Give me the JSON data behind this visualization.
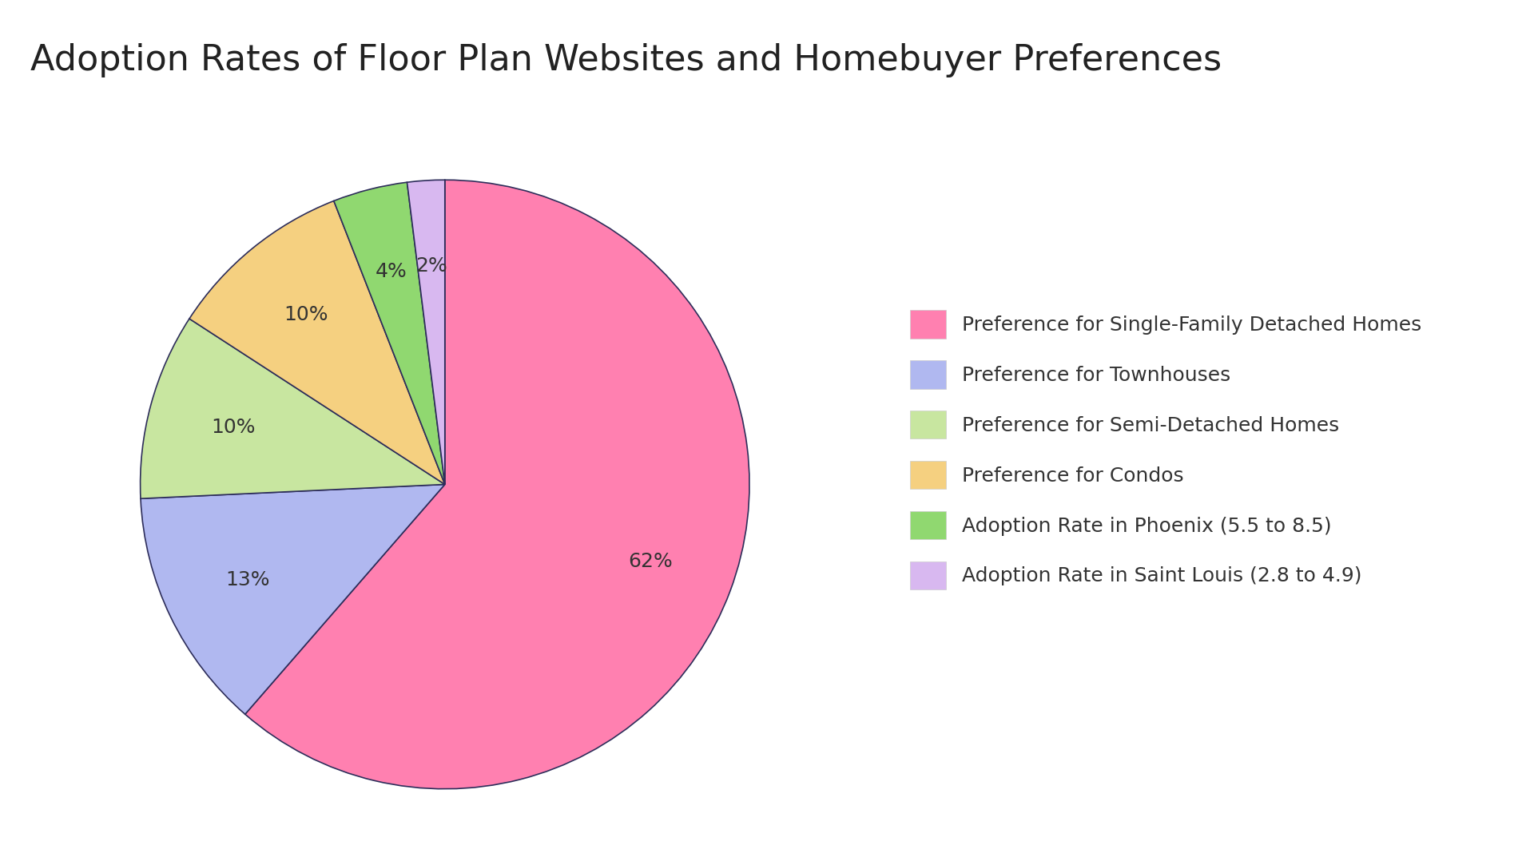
{
  "title": "Adoption Rates of Floor Plan Websites and Homebuyer Preferences",
  "slices": [
    62,
    13,
    10,
    10,
    4,
    2
  ],
  "labels": [
    "Preference for Single-Family Detached Homes",
    "Preference for Townhouses",
    "Preference for Semi-Detached Homes",
    "Preference for Condos",
    "Adoption Rate in Phoenix (5.5 to 8.5)",
    "Adoption Rate in Saint Louis (2.8 to 4.9)"
  ],
  "colors": [
    "#FF80B0",
    "#B0B8F0",
    "#C8E6A0",
    "#F5D080",
    "#90D870",
    "#D8B8F0"
  ],
  "startangle": 90,
  "title_fontsize": 32,
  "legend_fontsize": 18,
  "autopct_fontsize": 18,
  "background_color": "#ffffff",
  "edge_color": "#2d2d5a",
  "text_color": "#333333"
}
